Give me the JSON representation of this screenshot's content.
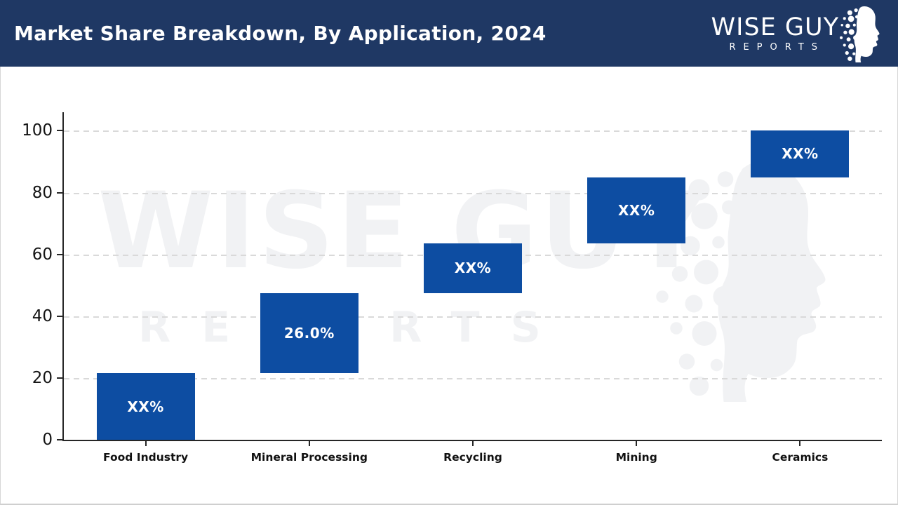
{
  "header": {
    "title": "Market Share Breakdown, By Application, 2024",
    "logo": {
      "line1": "WISE GUY",
      "line2": "REPORTS"
    }
  },
  "watermark": {
    "line1": "WISE GUY",
    "line2": "REPORTS"
  },
  "chart_data": {
    "type": "bar",
    "subtype": "floating-waterfall",
    "title": "Market Share Breakdown, By Application, 2024",
    "categories": [
      "Food Industry",
      "Mineral Processing",
      "Recycling",
      "Mining",
      "Ceramics"
    ],
    "bars": [
      {
        "category": "Food Industry",
        "start": 0,
        "end": 21.5,
        "label": "XX%"
      },
      {
        "category": "Mineral Processing",
        "start": 21.5,
        "end": 47.5,
        "label": "26.0%"
      },
      {
        "category": "Recycling",
        "start": 47.5,
        "end": 63.5,
        "label": "XX%"
      },
      {
        "category": "Mining",
        "start": 63.5,
        "end": 85,
        "label": "XX%"
      },
      {
        "category": "Ceramics",
        "start": 85,
        "end": 100,
        "label": "XX%"
      }
    ],
    "yticks": [
      0,
      20,
      40,
      60,
      80,
      100
    ],
    "ylim": [
      0,
      106
    ],
    "grid": "dashed-horizontal",
    "legend": "none",
    "colors": {
      "bar": "#0d4da2",
      "bar_label": "#ffffff",
      "grid": "#d9d9d9",
      "axis": "#262626",
      "tick_label": "#141414",
      "header_bg": "#1f3864",
      "header_text": "#ffffff",
      "watermark": "#f1f2f4"
    }
  }
}
